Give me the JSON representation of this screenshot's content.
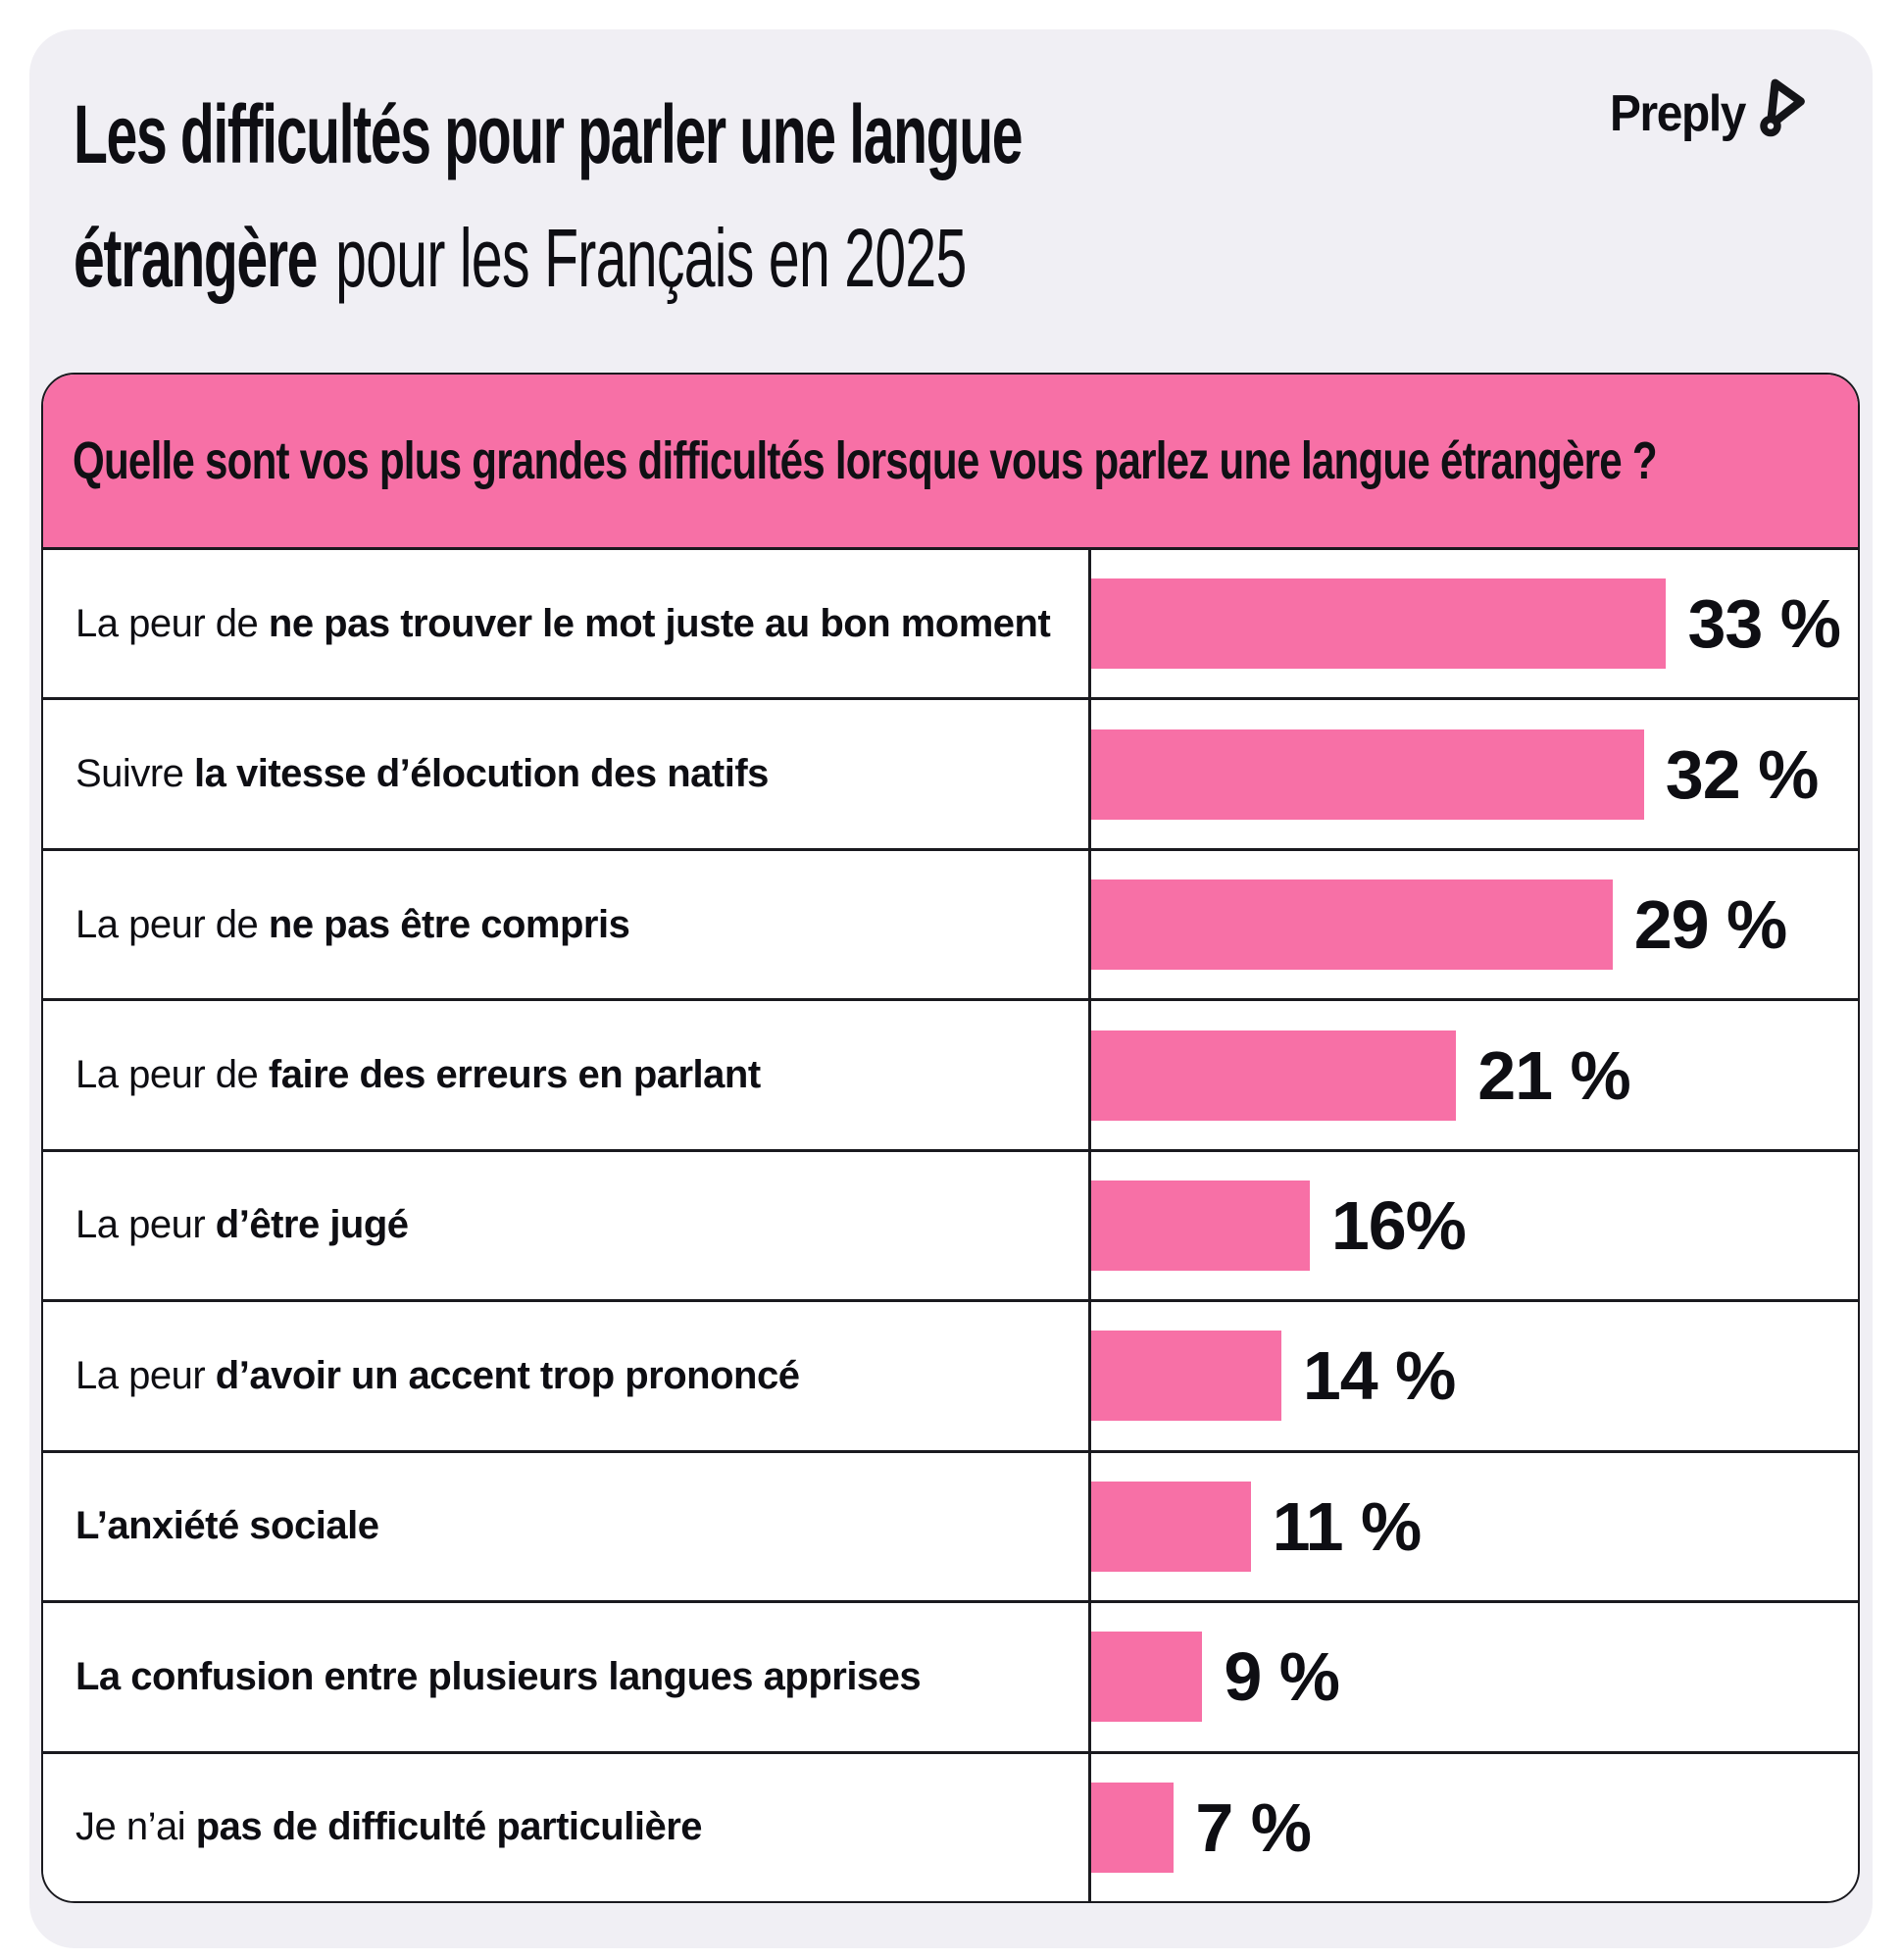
{
  "header": {
    "title_line1": "Les difficultés pour parler une langue",
    "title_line2_strong": "étrangère",
    "title_line2_rest": "pour les Français en 2025",
    "logo_text": "Preply"
  },
  "question": {
    "text": "Quelle sont vos plus grandes difficultés lorsque vous parlez une langue étrangère ?"
  },
  "chart_data": {
    "type": "bar",
    "orientation": "horizontal",
    "title": "Les difficultés pour parler une langue étrangère pour les Français en 2025",
    "unit": "%",
    "categories": [
      "La peur de ne pas trouver le mot juste au bon moment",
      "Suivre la vitesse d’élocution des natifs",
      "La peur de ne pas être compris",
      "La peur de faire des erreurs en parlant",
      "La peur d’être jugé",
      "La peur d’avoir un accent trop prononcé",
      "L’anxiété sociale",
      "La confusion entre plusieurs langues apprises",
      "Je n’ai pas de difficulté particulière"
    ],
    "values": [
      33,
      32,
      29,
      21,
      16,
      14,
      11,
      9,
      7
    ],
    "rows": [
      {
        "label_prefix": "La peur de ",
        "label_emphasis": "ne pas trouver le mot juste au bon moment",
        "value": 33,
        "value_label": "33 %",
        "bar_frac": 0.75
      },
      {
        "label_prefix": "Suivre ",
        "label_emphasis": "la vitesse d’élocution des natifs",
        "value": 32,
        "value_label": "32 %",
        "bar_frac": 0.721
      },
      {
        "label_prefix": "La peur de ",
        "label_emphasis": "ne pas être compris",
        "value": 29,
        "value_label": "29 %",
        "bar_frac": 0.68
      },
      {
        "label_prefix": "La peur de ",
        "label_emphasis": "faire des erreurs en parlant",
        "value": 21,
        "value_label": "21 %",
        "bar_frac": 0.476
      },
      {
        "label_prefix": "La peur ",
        "label_emphasis": "d’être jugé",
        "value": 16,
        "value_label": "16%",
        "bar_frac": 0.285
      },
      {
        "label_prefix": "La peur ",
        "label_emphasis": "d’avoir un accent trop prononcé",
        "value": 14,
        "value_label": "14 %",
        "bar_frac": 0.248
      },
      {
        "label_prefix": "",
        "label_emphasis": "L’anxiété sociale",
        "value": 11,
        "value_label": "11 %",
        "bar_frac": 0.208
      },
      {
        "label_prefix": "",
        "label_emphasis": "La confusion entre plusieurs langues apprises",
        "value": 9,
        "value_label": "9 %",
        "bar_frac": 0.145
      },
      {
        "label_prefix": "Je n’ai ",
        "label_emphasis": "pas de difficulté particulière",
        "value": 7,
        "value_label": "7 %",
        "bar_frac": 0.108
      }
    ],
    "legend": null,
    "grid": false,
    "bar_color": "#F770A6"
  },
  "colors": {
    "page_background": "#FFFFFF",
    "card_background": "#F0EFF4",
    "accent_pink": "#F770A6",
    "ink": "#121217",
    "line": "#1A1A1F"
  }
}
